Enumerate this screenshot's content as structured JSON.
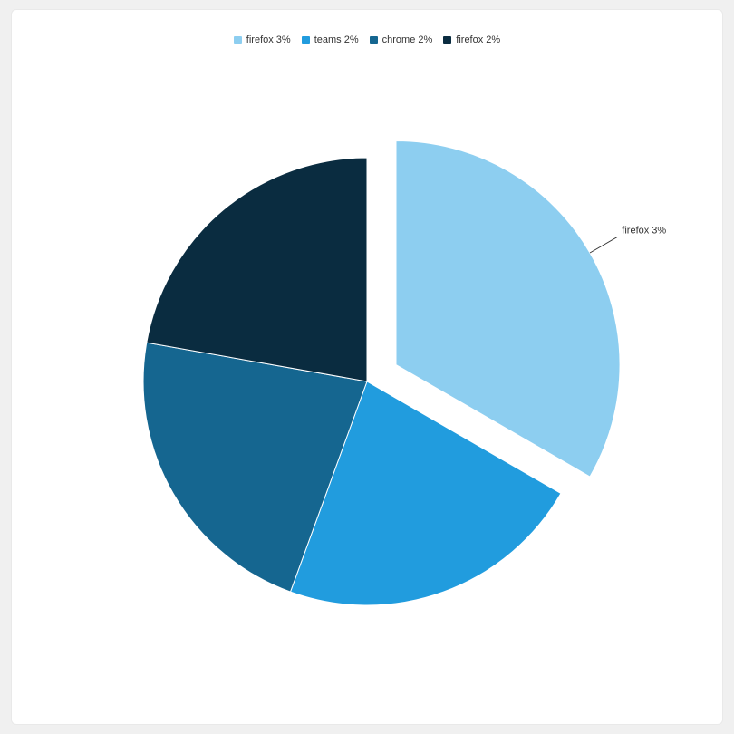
{
  "page": {
    "background_color": "#f0f0f0",
    "card_color": "#ffffff"
  },
  "chart_data": {
    "type": "pie",
    "title": "",
    "legend_position": "top",
    "start_angle_deg": 0,
    "direction": "clockwise",
    "slice_border_color": "#ffffff",
    "data_label_color": "#303030",
    "connector_color": "#333333",
    "legend_text_color": "#333333",
    "slices": [
      {
        "label": "firefox",
        "legend_label": "firefox 3%",
        "value": 3,
        "percent_of_total": 33.3,
        "color": "#8DCEF0",
        "exploded": true,
        "data_label": "firefox 3%"
      },
      {
        "label": "teams",
        "legend_label": "teams 2%",
        "value": 2,
        "percent_of_total": 22.2,
        "color": "#219CDE",
        "exploded": false,
        "data_label": ""
      },
      {
        "label": "chrome",
        "legend_label": "chrome 2%",
        "value": 2,
        "percent_of_total": 22.2,
        "color": "#156690",
        "exploded": false,
        "data_label": ""
      },
      {
        "label": "firefox",
        "legend_label": "firefox 2%",
        "value": 2,
        "percent_of_total": 22.2,
        "color": "#0A2C40",
        "exploded": false,
        "data_label": ""
      }
    ]
  }
}
